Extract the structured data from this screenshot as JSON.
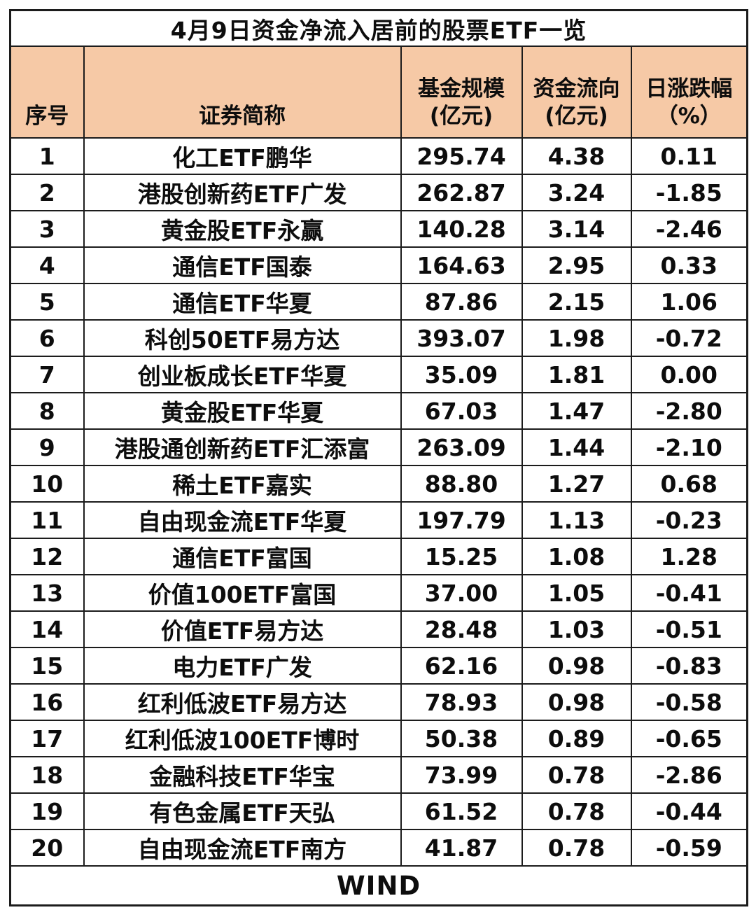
{
  "colors": {
    "header_bg": "#f6c9a6",
    "border": "#1c1c1c",
    "text": "#0d0d0d",
    "source_text": "#e3231c"
  },
  "chart_data": {
    "type": "table",
    "title": "4月9日资金净流入居前的股票ETF一览",
    "source": "WIND",
    "columns": [
      {
        "label": "序号",
        "sub": ""
      },
      {
        "label": "证券简称",
        "sub": ""
      },
      {
        "label": "基金规模",
        "sub": "(亿元)"
      },
      {
        "label": "资金流向",
        "sub": "(亿元)"
      },
      {
        "label": "日涨跌幅",
        "sub": "（%）"
      }
    ],
    "rows": [
      [
        "1",
        "化工ETF鹏华",
        "295.74",
        "4.38",
        "0.11"
      ],
      [
        "2",
        "港股创新药ETF广发",
        "262.87",
        "3.24",
        "-1.85"
      ],
      [
        "3",
        "黄金股ETF永赢",
        "140.28",
        "3.14",
        "-2.46"
      ],
      [
        "4",
        "通信ETF国泰",
        "164.63",
        "2.95",
        "0.33"
      ],
      [
        "5",
        "通信ETF华夏",
        "87.86",
        "2.15",
        "1.06"
      ],
      [
        "6",
        "科创50ETF易方达",
        "393.07",
        "1.98",
        "-0.72"
      ],
      [
        "7",
        "创业板成长ETF华夏",
        "35.09",
        "1.81",
        "0.00"
      ],
      [
        "8",
        "黄金股ETF华夏",
        "67.03",
        "1.47",
        "-2.80"
      ],
      [
        "9",
        "港股通创新药ETF汇添富",
        "263.09",
        "1.44",
        "-2.10"
      ],
      [
        "10",
        "稀土ETF嘉实",
        "88.80",
        "1.27",
        "0.68"
      ],
      [
        "11",
        "自由现金流ETF华夏",
        "197.79",
        "1.13",
        "-0.23"
      ],
      [
        "12",
        "通信ETF富国",
        "15.25",
        "1.08",
        "1.28"
      ],
      [
        "13",
        "价值100ETF富国",
        "37.00",
        "1.05",
        "-0.41"
      ],
      [
        "14",
        "价值ETF易方达",
        "28.48",
        "1.03",
        "-0.51"
      ],
      [
        "15",
        "电力ETF广发",
        "62.16",
        "0.98",
        "-0.83"
      ],
      [
        "16",
        "红利低波ETF易方达",
        "78.93",
        "0.98",
        "-0.58"
      ],
      [
        "17",
        "红利低波100ETF博时",
        "50.38",
        "0.89",
        "-0.65"
      ],
      [
        "18",
        "金融科技ETF华宝",
        "73.99",
        "0.78",
        "-2.86"
      ],
      [
        "19",
        "有色金属ETF天弘",
        "61.52",
        "0.78",
        "-0.44"
      ],
      [
        "20",
        "自由现金流ETF南方",
        "41.87",
        "0.78",
        "-0.59"
      ]
    ]
  }
}
